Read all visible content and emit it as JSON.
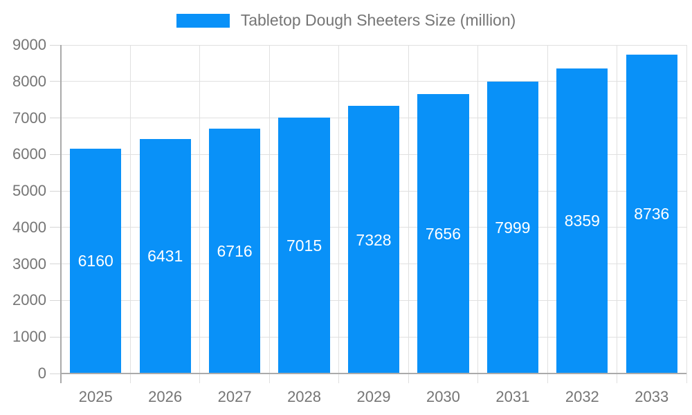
{
  "chart_data": {
    "type": "bar",
    "title": "Tabletop Dough Sheeters Size (million)",
    "categories": [
      "2025",
      "2026",
      "2027",
      "2028",
      "2029",
      "2030",
      "2031",
      "2032",
      "2033"
    ],
    "series": [
      {
        "name": "Tabletop Dough Sheeters Size (million)",
        "values": [
          6160,
          6431,
          6716,
          7015,
          7328,
          7656,
          7999,
          8359,
          8736
        ]
      }
    ],
    "xlabel": "",
    "ylabel": "",
    "ylim": [
      0,
      9000
    ],
    "ytick_interval": 1000,
    "yticks": [
      0,
      1000,
      2000,
      3000,
      4000,
      5000,
      6000,
      7000,
      8000,
      9000
    ],
    "grid": true,
    "legend_position": "top-center",
    "value_labels": "inside-middle",
    "colors": {
      "bar": "#0991f8",
      "value_label": "#ffffff",
      "axis_text": "#757575",
      "grid_line": "#e0e0e0",
      "tick_line": "#d6d6d6",
      "axis_line": "#aaaaaa",
      "background": "#ffffff"
    }
  }
}
